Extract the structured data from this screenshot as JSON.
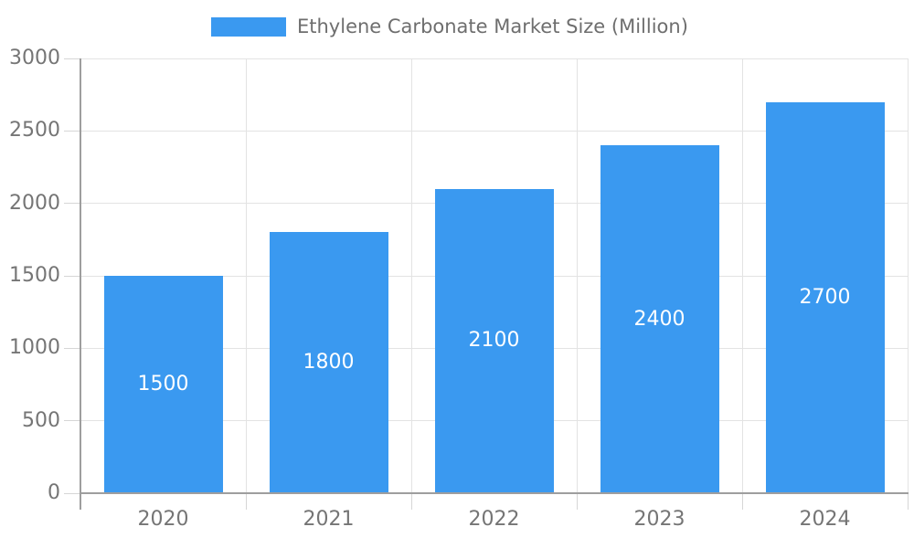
{
  "legend": {
    "position": "top",
    "label": "Ethylene Carbonate Market Size (Million)"
  },
  "chart_data": {
    "type": "bar",
    "title": "Ethylene Carbonate Market Size (Million)",
    "series_name": "Ethylene Carbonate Market Size (Million)",
    "categories": [
      "2020",
      "2021",
      "2022",
      "2023",
      "2024"
    ],
    "values": [
      1500,
      1800,
      2100,
      2400,
      2700
    ],
    "data_labels": [
      "1500",
      "1800",
      "2100",
      "2400",
      "2700"
    ],
    "xlabel": "",
    "ylabel": "",
    "ylim": [
      0,
      3000
    ],
    "yticks": [
      0,
      500,
      1000,
      1500,
      2000,
      2500,
      3000
    ],
    "grid": true,
    "legend_position": "top",
    "colors": {
      "bar": "#3a99f0",
      "bar_value_label": "#ffffff",
      "axis_text": "#757575",
      "legend_text": "#6e6e6e",
      "axis_line": "#9e9e9e",
      "grid_line": "#e3e3e3",
      "tick_line": "#d6d6d6",
      "background": "#ffffff"
    }
  }
}
